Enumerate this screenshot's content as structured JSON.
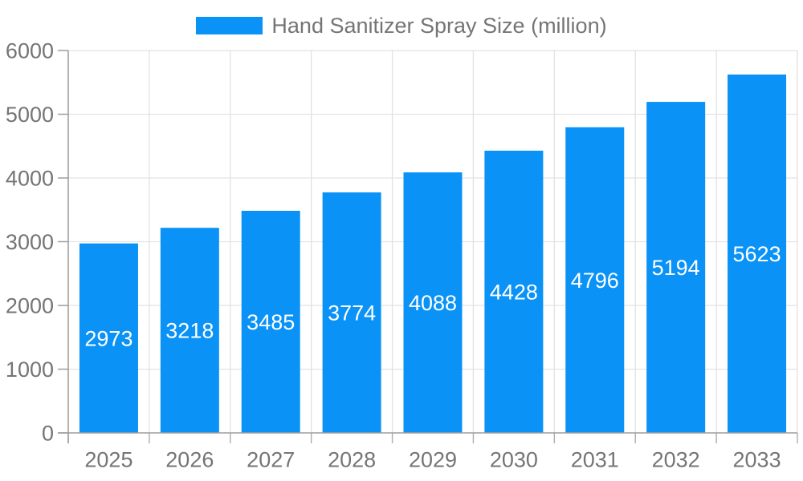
{
  "chart_data": {
    "type": "bar",
    "title": "Hand Sanitizer Spray Size (million)",
    "categories": [
      "2025",
      "2026",
      "2027",
      "2028",
      "2029",
      "2030",
      "2031",
      "2032",
      "2033"
    ],
    "values": [
      2973,
      3218,
      3485,
      3774,
      4088,
      4428,
      4796,
      5194,
      5623
    ],
    "series": [
      {
        "name": "Hand Sanitizer Spray Size (million)",
        "values": [
          2973,
          3218,
          3485,
          3774,
          4088,
          4428,
          4796,
          5194,
          5623
        ]
      }
    ],
    "xlabel": "",
    "ylabel": "",
    "ylim": [
      0,
      6000
    ],
    "ytick_step": 1000,
    "ytick_labels": [
      "0",
      "1000",
      "2000",
      "3000",
      "4000",
      "5000",
      "6000"
    ],
    "grid": true,
    "legend_position": "top-center",
    "value_labels": "inside-center",
    "colors": {
      "bar": "#0a92f6",
      "grid": "#e2e2e2",
      "axis": "#9e9e9e",
      "tick": "#adadad",
      "axis_text": "#757575",
      "value_text": "#ffffff",
      "background": "#ffffff"
    }
  }
}
